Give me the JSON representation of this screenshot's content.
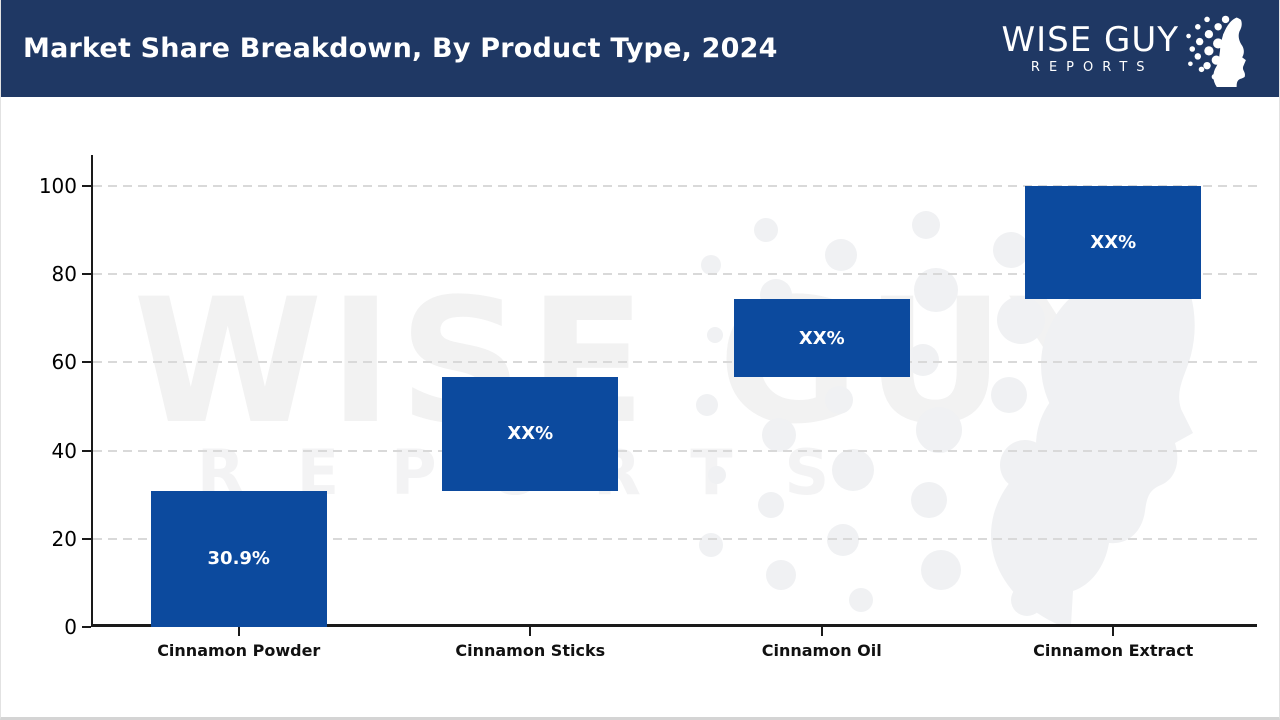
{
  "page": {
    "background": "#ffffff",
    "border_color": "#d4d4d4"
  },
  "header": {
    "bg": "#1f3864",
    "title": "Market Share Breakdown, By Product Type, 2024",
    "logo": {
      "line1": "WISE GUY",
      "line2": "REPORTS"
    }
  },
  "chart_data": {
    "type": "bar",
    "subtype": "floating-waterfall",
    "title": "Market Share Breakdown, By Product Type, 2024",
    "categories": [
      "Cinnamon Powder",
      "Cinnamon Sticks",
      "Cinnamon Oil",
      "Cinnamon Extract"
    ],
    "series": [
      {
        "name": "Market share (%)",
        "segments": [
          {
            "category": "Cinnamon Powder",
            "start": 0,
            "end": 30.9,
            "label": "30.9%"
          },
          {
            "category": "Cinnamon Sticks",
            "start": 30.9,
            "end": 56.6,
            "label": "XX%"
          },
          {
            "category": "Cinnamon Oil",
            "start": 56.6,
            "end": 74.4,
            "label": "XX%"
          },
          {
            "category": "Cinnamon Extract",
            "start": 74.4,
            "end": 100,
            "label": "XX%"
          }
        ]
      }
    ],
    "y_ticks": [
      0,
      20,
      40,
      60,
      80,
      100
    ],
    "ylim": [
      0,
      107
    ],
    "xlabel": "",
    "ylabel": "",
    "grid": {
      "axis": "y",
      "style": "dashed",
      "color": "#d9d9d9"
    },
    "legend": "none",
    "bar_color": "#0c4a9e",
    "bar_label_color": "#ffffff",
    "axis_color": "#1a1a1a",
    "watermark": {
      "line1": "WISE GUY",
      "line2": "REPORTS"
    }
  }
}
